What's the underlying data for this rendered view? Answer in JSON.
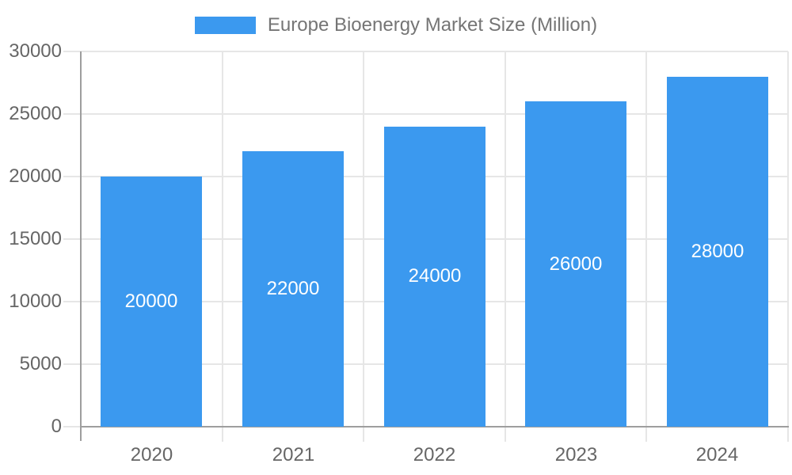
{
  "chart_data": {
    "type": "bar",
    "title": "Europe Bioenergy Market Size (Million)",
    "categories": [
      "2020",
      "2021",
      "2022",
      "2023",
      "2024"
    ],
    "values": [
      20000,
      22000,
      24000,
      26000,
      28000
    ],
    "series": [
      {
        "name": "Europe Bioenergy Market Size (Million)",
        "values": [
          20000,
          22000,
          24000,
          26000,
          28000
        ]
      }
    ],
    "bar_value_labels": [
      "20000",
      "22000",
      "24000",
      "26000",
      "28000"
    ],
    "xlabel": "",
    "ylabel": "",
    "ylim": [
      0,
      30000
    ],
    "y_ticks": [
      0,
      5000,
      10000,
      15000,
      20000,
      25000,
      30000
    ],
    "y_tick_labels": [
      "0",
      "5000",
      "10000",
      "15000",
      "20000",
      "25000",
      "30000"
    ],
    "grid": true,
    "legend_position": "top-center",
    "value_label_position": "inside-center",
    "colors": {
      "bar": "#3B99EF",
      "grid": "#E6E6E6",
      "axis_line": "#9E9E9E",
      "axis_text": "#666666",
      "legend_text": "#757575",
      "bar_label_text": "#FFFFFF",
      "background": "#FFFFFF"
    }
  }
}
